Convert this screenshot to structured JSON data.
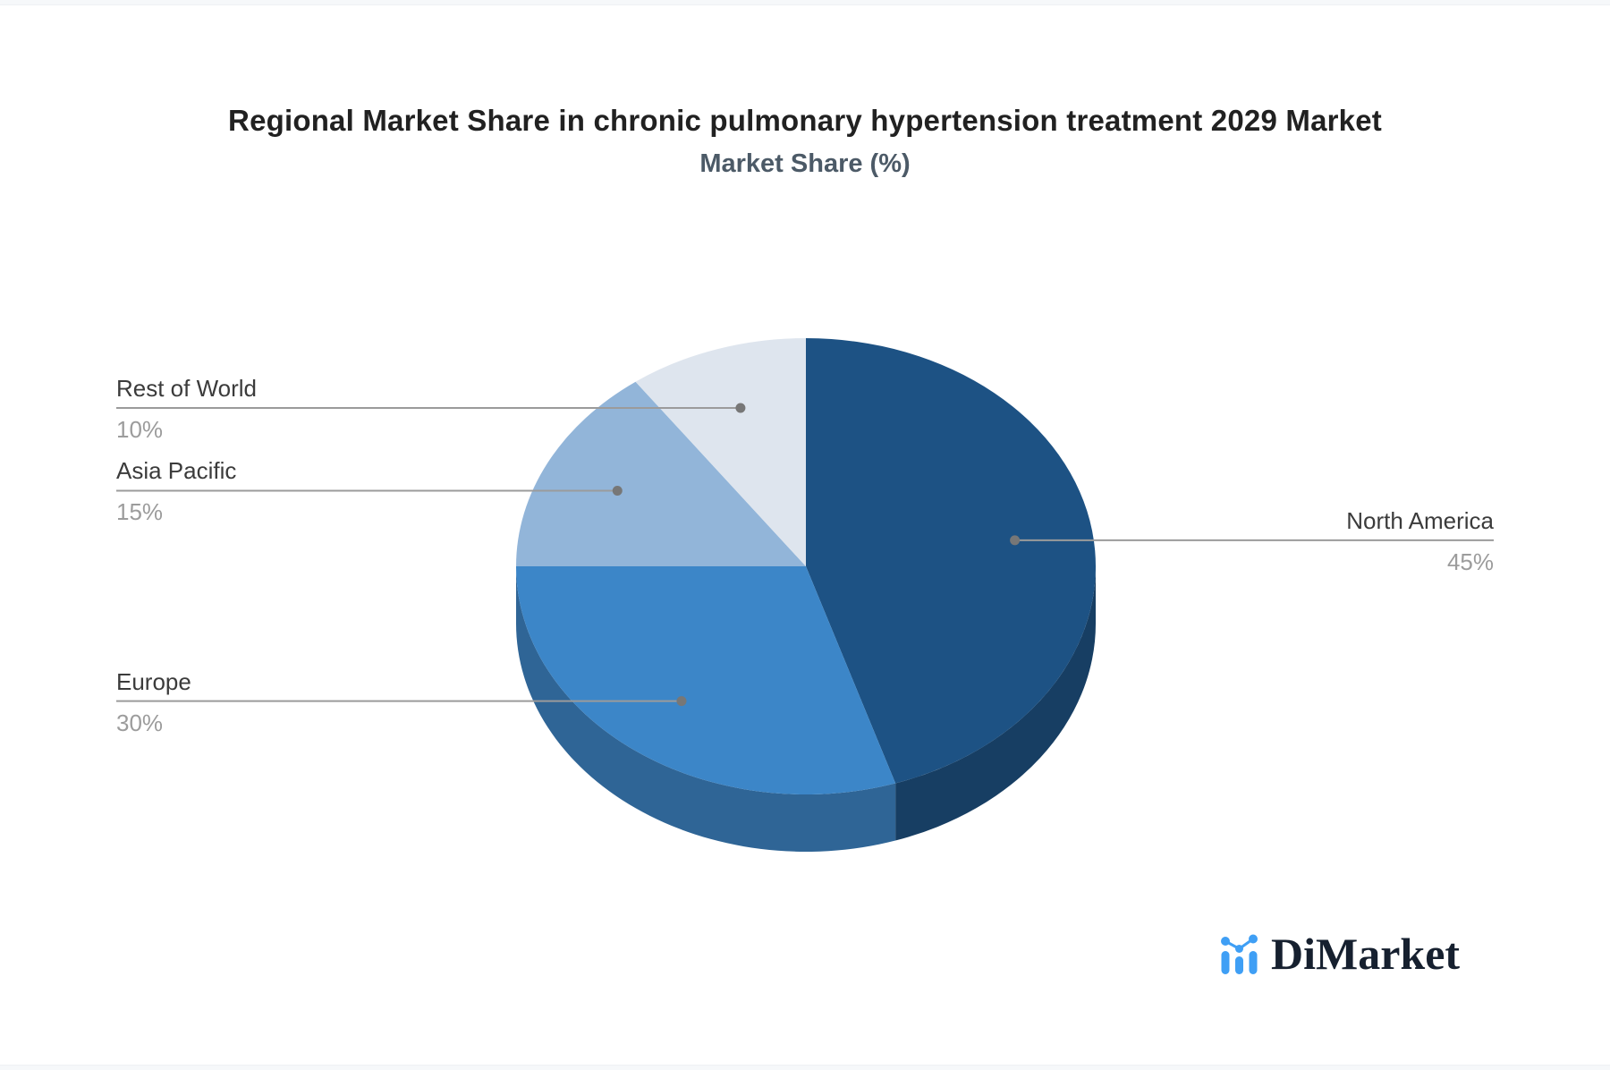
{
  "chart_data": {
    "type": "pie",
    "title": "Regional Market Share in chronic pulmonary hypertension treatment 2029 Market",
    "subtitle": "Market Share (%)",
    "categories": [
      "North America",
      "Europe",
      "Asia Pacific",
      "Rest of World"
    ],
    "values": [
      45,
      30,
      15,
      10
    ],
    "unit": "%",
    "style": "3d-pie",
    "start_angle_deg_from_top": 0,
    "direction": "clockwise",
    "legend_position": "callout-labels",
    "slices": [
      {
        "label": "North America",
        "value": 45,
        "display": "45%",
        "color": "#1d5284",
        "side_color": "#173e63",
        "callout_side": "right"
      },
      {
        "label": "Europe",
        "value": 30,
        "display": "30%",
        "color": "#3c86c8",
        "side_color": "#2f6596",
        "callout_side": "left"
      },
      {
        "label": "Asia Pacific",
        "value": 15,
        "display": "15%",
        "color": "#92b5d9",
        "callout_side": "left"
      },
      {
        "label": "Rest of World",
        "value": 10,
        "display": "10%",
        "color": "#dee5ee",
        "callout_side": "left"
      }
    ]
  },
  "logo": {
    "text": "DiMarket",
    "icon": "bar-chart-logo-icon",
    "bar_color": "#3f9ff5",
    "text_color": "#16202f"
  },
  "colors": {
    "connector": "#9b9b9b",
    "dot": "#777777",
    "title": "#212121",
    "subtitle": "#4c5a67",
    "label": "#3b3b3b",
    "value": "#9c9c9c",
    "background": "#ffffff",
    "edge_strip": "#f6f8fa"
  }
}
